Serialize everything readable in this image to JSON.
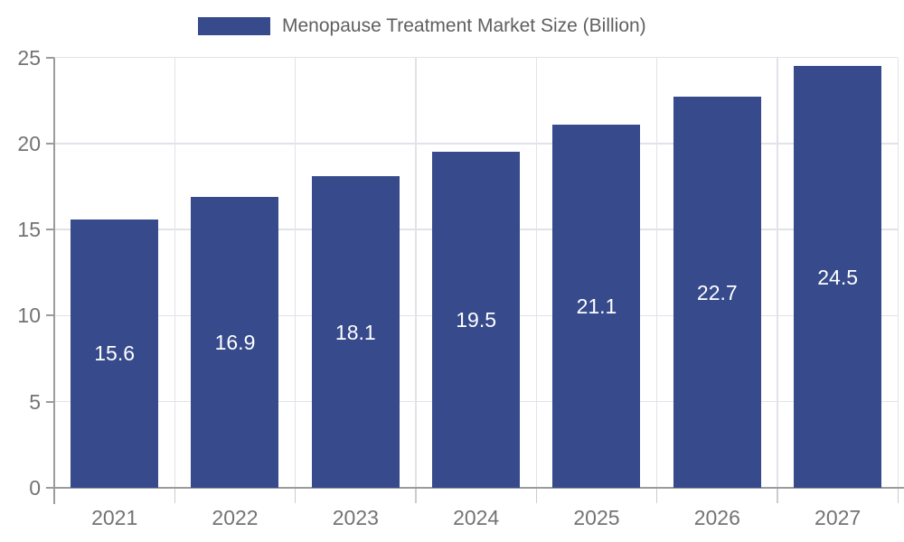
{
  "chart_data": {
    "type": "bar",
    "title": "Menopause Treatment Market Size (Billion)",
    "categories": [
      "2021",
      "2022",
      "2023",
      "2024",
      "2025",
      "2026",
      "2027"
    ],
    "values": [
      15.6,
      16.9,
      18.1,
      19.5,
      21.1,
      22.7,
      24.5
    ],
    "series": [
      {
        "name": "Menopause Treatment Market Size (Billion)",
        "values": [
          15.6,
          16.9,
          18.1,
          19.5,
          21.1,
          22.7,
          24.5
        ]
      }
    ],
    "xlabel": "",
    "ylabel": "",
    "ylim": [
      0,
      25
    ],
    "yticks": [
      0,
      5,
      10,
      15,
      20,
      25
    ],
    "grid": true,
    "value_labels": true,
    "legend_position": "top-center",
    "colors": {
      "bar": "#364A8C",
      "bar_value_text": "#FFFFFF",
      "axis_line": "#9B9B9B",
      "tick_text": "#737373",
      "grid_line": "#E2E2EA",
      "x_tick": "#CBCBD3",
      "legend_text": "#5F5F5F",
      "background": "#FFFFFF"
    }
  }
}
